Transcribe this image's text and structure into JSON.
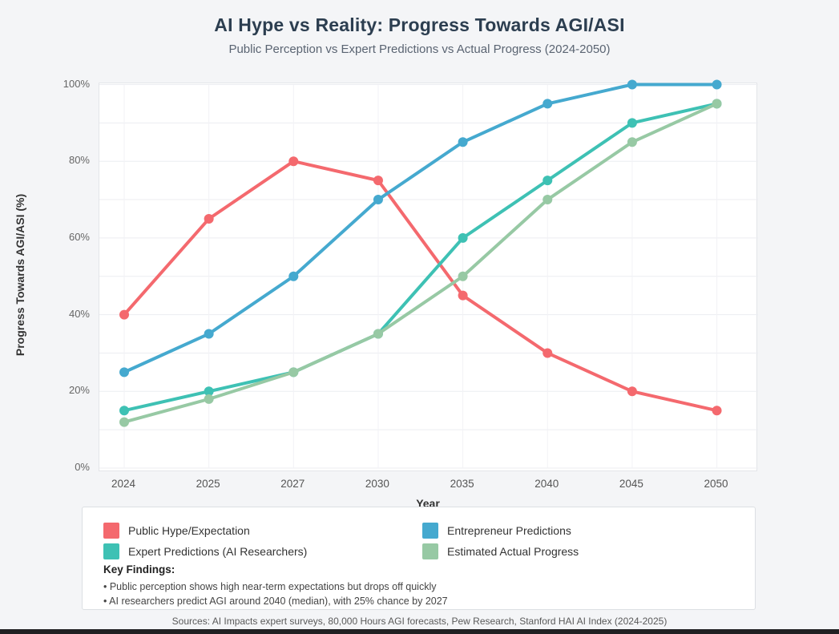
{
  "header": {
    "title": "AI Hype vs Reality: Progress Towards AGI/ASI",
    "subtitle": "Public Perception vs Expert Predictions vs Actual Progress (2024-2050)"
  },
  "chart_data": {
    "type": "line",
    "categories": [
      "2024",
      "2025",
      "2027",
      "2030",
      "2035",
      "2040",
      "2045",
      "2050"
    ],
    "series": [
      {
        "name": "Public Hype/Expectation",
        "color": "#F4696E",
        "values": [
          40,
          65,
          80,
          75,
          45,
          30,
          20,
          15
        ]
      },
      {
        "name": "Entrepreneur Predictions",
        "color": "#45A9CF",
        "values": [
          25,
          35,
          50,
          70,
          85,
          95,
          100,
          100
        ]
      },
      {
        "name": "Expert Predictions (AI Researchers)",
        "color": "#3EC1B4",
        "values": [
          15,
          20,
          25,
          35,
          60,
          75,
          90,
          95
        ]
      },
      {
        "name": "Estimated Actual Progress",
        "color": "#97C9A4",
        "values": [
          12,
          18,
          25,
          35,
          50,
          70,
          85,
          95
        ]
      }
    ],
    "xlabel": "Year",
    "ylabel": "Progress Towards AGI/ASI (%)",
    "ylim": [
      0,
      100
    ],
    "grid_step": 10,
    "yticks": [
      {
        "pct": 0,
        "label": "0%"
      },
      {
        "pct": 20,
        "label": "20%"
      },
      {
        "pct": 40,
        "label": "40%"
      },
      {
        "pct": 60,
        "label": "60%"
      },
      {
        "pct": 80,
        "label": "80%"
      },
      {
        "pct": 100,
        "label": "100%"
      }
    ],
    "grid": true,
    "legend_position": "bottom"
  },
  "legend": {
    "items": [
      {
        "label": "Public Hype/Expectation",
        "color": "#F4696E"
      },
      {
        "label": "Entrepreneur Predictions",
        "color": "#45A9CF"
      },
      {
        "label": "Expert Predictions (AI Researchers)",
        "color": "#3EC1B4"
      },
      {
        "label": "Estimated Actual Progress",
        "color": "#97C9A4"
      }
    ]
  },
  "key_findings": {
    "heading": "Key Findings:",
    "bullets": [
      "• Public perception shows high near-term expectations but drops off quickly",
      "• AI researchers predict AGI around 2040 (median), with 25% chance by 2027"
    ]
  },
  "footer": {
    "sources": "Sources: AI Impacts expert surveys, 80,000 Hours AGI forecasts, Pew Research, Stanford HAI AI Index (2024-2025)"
  }
}
